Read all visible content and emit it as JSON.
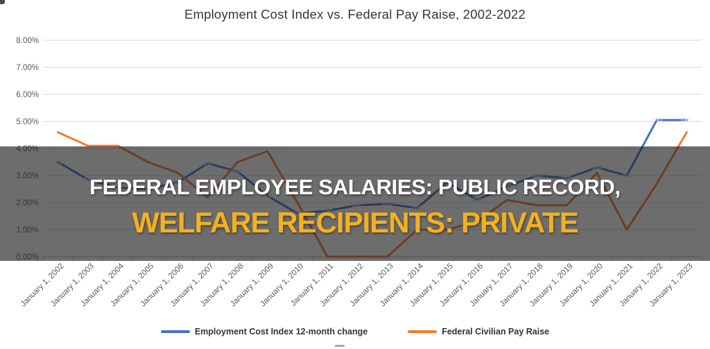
{
  "banner": {
    "line1": "FEDERAL EMPLOYEE SALARIES: PUBLIC RECORD,",
    "line2": "WELFARE RECIPIENTS: PRIVATE",
    "line1_color": "#FFFFFF",
    "line2_color": "#F4B01E"
  },
  "legend": {
    "items": [
      {
        "label": "Employment Cost Index 12-month change",
        "color": "#4472C4"
      },
      {
        "label": "Federal Civilian Pay Raise",
        "color": "#ED7D31"
      }
    ]
  },
  "chart_data": {
    "type": "line",
    "title": "Employment Cost Index vs. Federal Pay Raise, 2002-2022",
    "categories": [
      "January 1, 2002",
      "January 1, 2003",
      "January 1, 2004",
      "January 1, 2005",
      "January 1, 2006",
      "January 1, 2007",
      "January 1, 2008",
      "January 1, 2009",
      "January 1, 2010",
      "January 1, 2011",
      "January 1, 2012",
      "January 1, 2013",
      "January 1, 2014",
      "January 1, 2015",
      "January 1, 2016",
      "January 1, 2017",
      "January 1, 2018",
      "January 1, 2019",
      "January 1, 2020",
      "January 1, 2021",
      "January 1, 2022",
      "January 1, 2023"
    ],
    "series": [
      {
        "name": "Employment Cost Index 12-month change",
        "color": "#4472C4",
        "selected_with_handles": true,
        "values": [
          3.5,
          2.85,
          2.55,
          2.5,
          2.75,
          3.45,
          3.15,
          2.25,
          1.6,
          1.7,
          1.9,
          1.95,
          1.8,
          2.75,
          2.1,
          2.6,
          3.0,
          2.9,
          3.3,
          3.0,
          5.05,
          5.05
        ]
      },
      {
        "name": "Federal Civilian Pay Raise",
        "color": "#ED7D31",
        "selected_with_handles": false,
        "values": [
          4.6,
          4.1,
          4.1,
          3.5,
          3.1,
          2.2,
          3.5,
          3.9,
          2.0,
          0.0,
          0.0,
          0.0,
          1.0,
          1.0,
          1.3,
          2.1,
          1.9,
          1.9,
          3.1,
          1.0,
          2.7,
          4.6
        ]
      }
    ],
    "y_ticks": [
      "0.00%",
      "1.00%",
      "2.00%",
      "3.00%",
      "4.00%",
      "5.00%",
      "6.00%",
      "7.00%",
      "8.00%"
    ],
    "ylim": [
      0,
      8
    ],
    "xlabel": "",
    "ylabel": "",
    "grid": true,
    "x_label_rotation": -45,
    "legend_position": "bottom"
  }
}
